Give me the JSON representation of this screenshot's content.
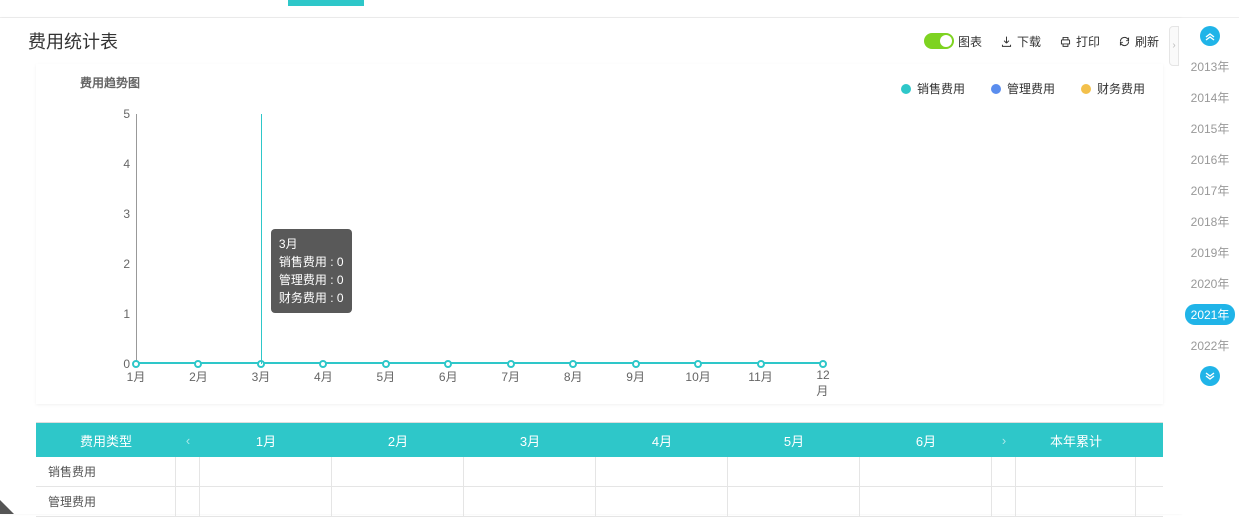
{
  "page": {
    "title": "费用统计表"
  },
  "toolbar": {
    "chart_toggle_label": "图表",
    "download_label": "下载",
    "print_label": "打印",
    "refresh_label": "刷新"
  },
  "chart": {
    "type": "line",
    "title": "费用趋势图",
    "background_color": "#ffffff",
    "axis_color": "#999999",
    "tick_color": "#666666",
    "tick_fontsize": 12,
    "x_labels": [
      "1月",
      "2月",
      "3月",
      "4月",
      "5月",
      "6月",
      "7月",
      "8月",
      "9月",
      "10月",
      "11月",
      "12月"
    ],
    "y_ticks": [
      0,
      1,
      2,
      3,
      4,
      5
    ],
    "ylim": [
      0,
      5
    ],
    "series": [
      {
        "name": "销售费用",
        "color": "#2ec7c9",
        "values": [
          0,
          0,
          0,
          0,
          0,
          0,
          0,
          0,
          0,
          0,
          0,
          0
        ]
      },
      {
        "name": "管理费用",
        "color": "#5a8dee",
        "values": [
          0,
          0,
          0,
          0,
          0,
          0,
          0,
          0,
          0,
          0,
          0,
          0
        ]
      },
      {
        "name": "财务费用",
        "color": "#f3c04b",
        "values": [
          0,
          0,
          0,
          0,
          0,
          0,
          0,
          0,
          0,
          0,
          0,
          0
        ]
      }
    ],
    "hover_index": 2,
    "tooltip": {
      "title": "3月",
      "rows": [
        {
          "label": "销售费用",
          "value": "0"
        },
        {
          "label": "管理费用",
          "value": "0"
        },
        {
          "label": "财务费用",
          "value": "0"
        }
      ]
    },
    "line_width": 2,
    "marker_radius": 4
  },
  "table": {
    "first_col_header": "费用类型",
    "month_headers": [
      "1月",
      "2月",
      "3月",
      "4月",
      "5月",
      "6月"
    ],
    "total_header": "本年累计",
    "rows": [
      {
        "label": "销售费用",
        "cells": [
          "",
          "",
          "",
          "",
          "",
          ""
        ],
        "total": ""
      },
      {
        "label": "管理费用",
        "cells": [
          "",
          "",
          "",
          "",
          "",
          ""
        ],
        "total": ""
      }
    ],
    "header_bg": "#2ec7c9",
    "border_color": "#e5e5e5",
    "col_widths": {
      "first": 140,
      "month": 132,
      "arrow": 24,
      "total": 120
    }
  },
  "year_rail": {
    "years": [
      "2013年",
      "2014年",
      "2015年",
      "2016年",
      "2017年",
      "2018年",
      "2019年",
      "2020年",
      "2021年",
      "2022年"
    ],
    "active_year": "2021年",
    "accent_color": "#20b4e8"
  }
}
